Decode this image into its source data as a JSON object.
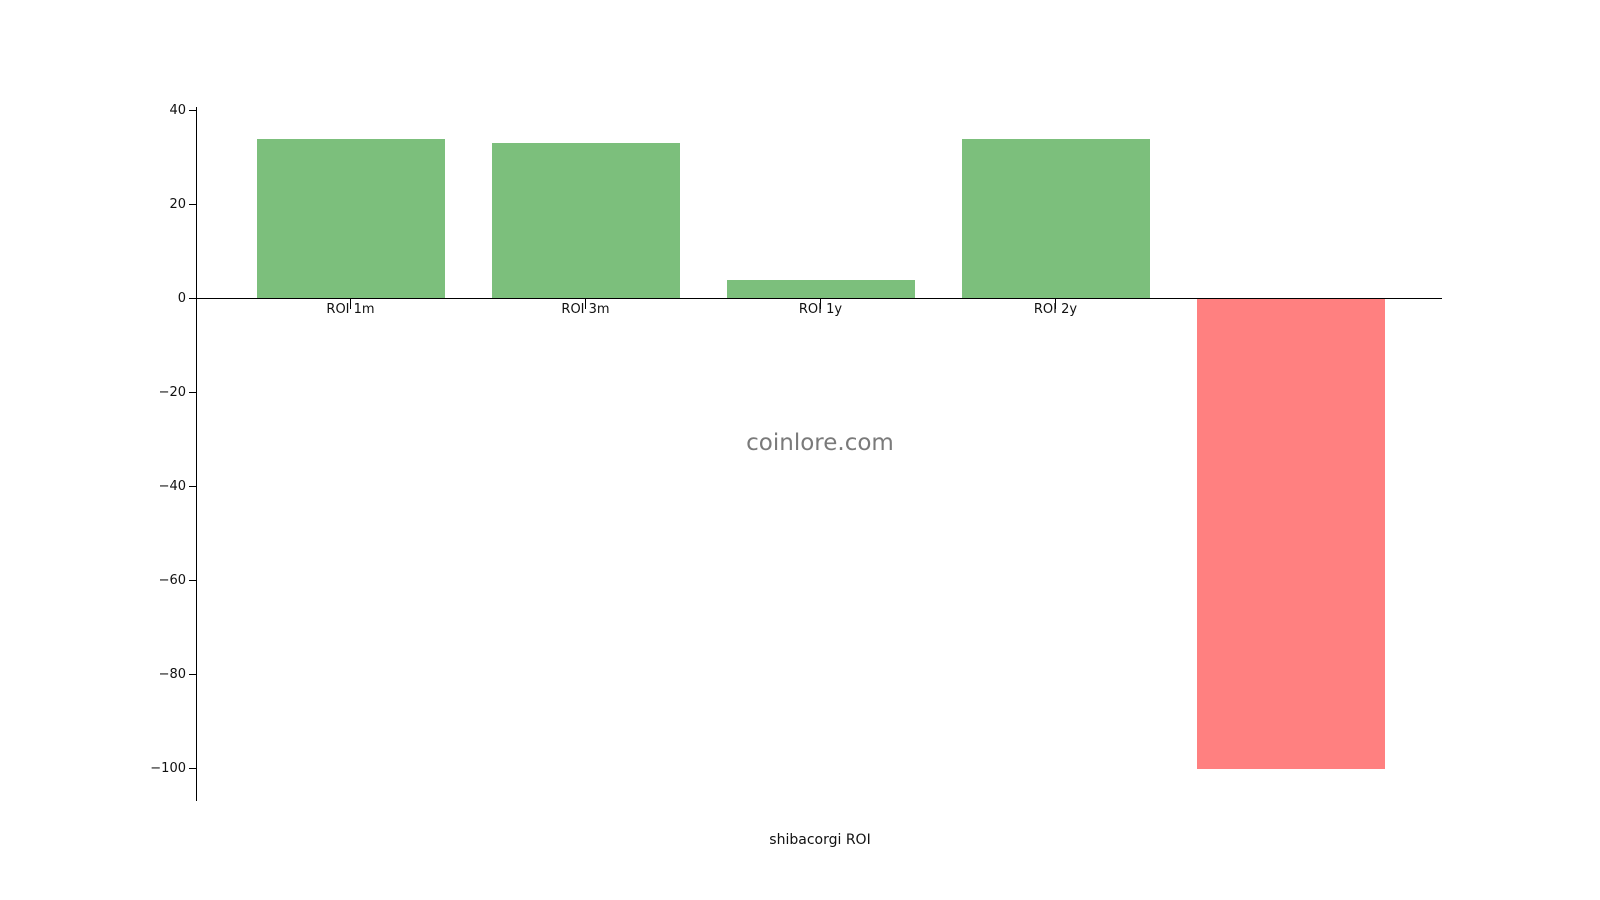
{
  "chart_data": {
    "type": "bar",
    "title": "shibacorgi ROI",
    "watermark": "coinlore.com",
    "categories": [
      "ROI 1m",
      "ROI 3m",
      "ROI 1y",
      "ROI 2y",
      ""
    ],
    "values": [
      34,
      33,
      4,
      34,
      -100
    ],
    "bar_colors": [
      "#7CBF7C",
      "#7CBF7C",
      "#7CBF7C",
      "#7CBF7C",
      "#FF8080"
    ],
    "positive_color": "#7CBF7C",
    "negative_color": "#FF8080",
    "y_ticks": [
      {
        "value": 40,
        "label": "40"
      },
      {
        "value": 20,
        "label": "20"
      },
      {
        "value": 0,
        "label": "0"
      },
      {
        "value": -20,
        "label": "−20"
      },
      {
        "value": -40,
        "label": "−40"
      },
      {
        "value": -60,
        "label": "−60"
      },
      {
        "value": -80,
        "label": "−80"
      },
      {
        "value": -100,
        "label": "−100"
      }
    ],
    "ylim": [
      -107,
      41
    ],
    "xlabel": "",
    "ylabel": "",
    "grid": false,
    "legend_position": "none",
    "axis_color": "#000000",
    "text_color": "#111111",
    "watermark_color": "#7a7a7a"
  }
}
